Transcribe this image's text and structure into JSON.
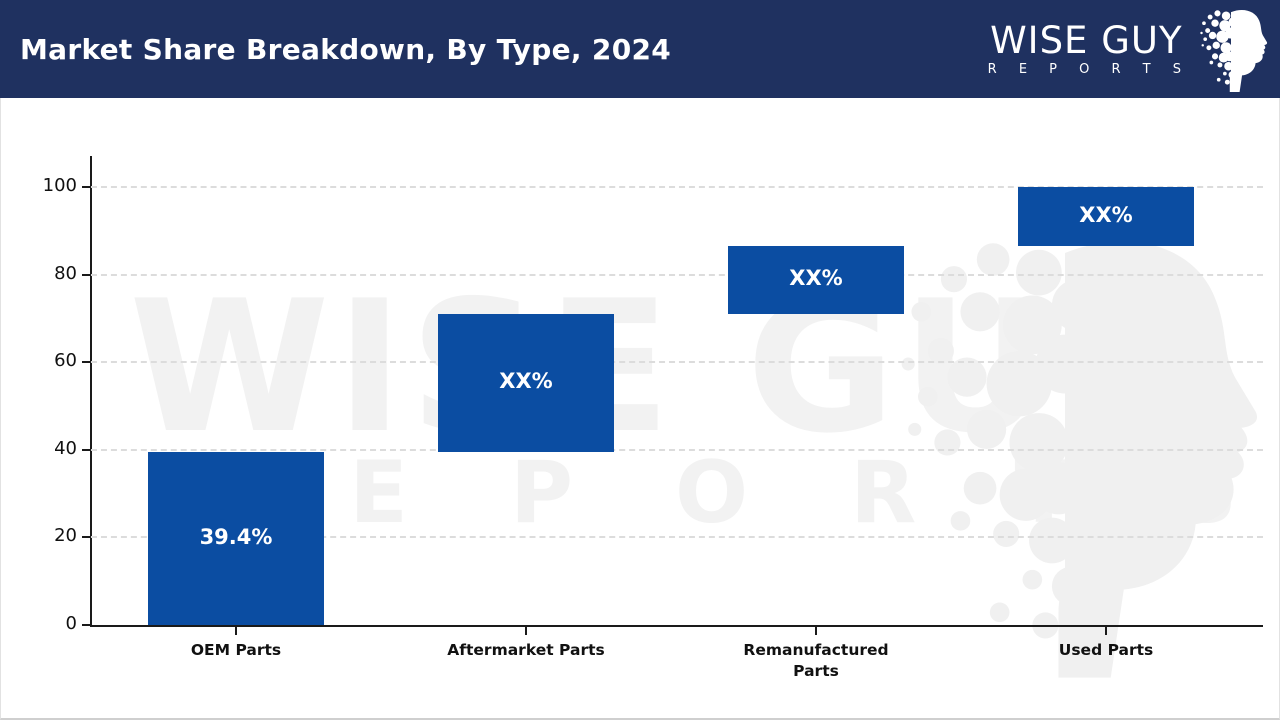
{
  "header": {
    "title": "Market Share Breakdown, By Type, 2024",
    "bg_color": "#1f3160",
    "logo": {
      "line1": "WISE GUY",
      "line2": "R E P O R T S"
    }
  },
  "watermark": {
    "line1": "WISE GUY",
    "line2": "REPORTS"
  },
  "chart_data": {
    "type": "bar",
    "variant": "waterfall",
    "title": "Market Share Breakdown, By Type, 2024",
    "categories": [
      "OEM Parts",
      "Aftermarket Parts",
      "Remanufactured Parts",
      "Used Parts"
    ],
    "bars": [
      {
        "category": "OEM Parts",
        "from": 0,
        "to": 39.4,
        "label": "39.4%"
      },
      {
        "category": "Aftermarket Parts",
        "from": 39.4,
        "to": 70.9,
        "label": "XX%"
      },
      {
        "category": "Remanufactured Parts",
        "from": 70.9,
        "to": 86.5,
        "label": "XX%"
      },
      {
        "category": "Used Parts",
        "from": 86.5,
        "to": 100,
        "label": "XX%"
      }
    ],
    "bar_color": "#0b4da2",
    "bar_label_color": "#ffffff",
    "yticks": [
      0,
      20,
      40,
      60,
      80,
      100
    ],
    "ylim": [
      0,
      105
    ],
    "xlabel": "",
    "ylabel": "",
    "grid": "horizontal-dashed",
    "legend": "none"
  }
}
